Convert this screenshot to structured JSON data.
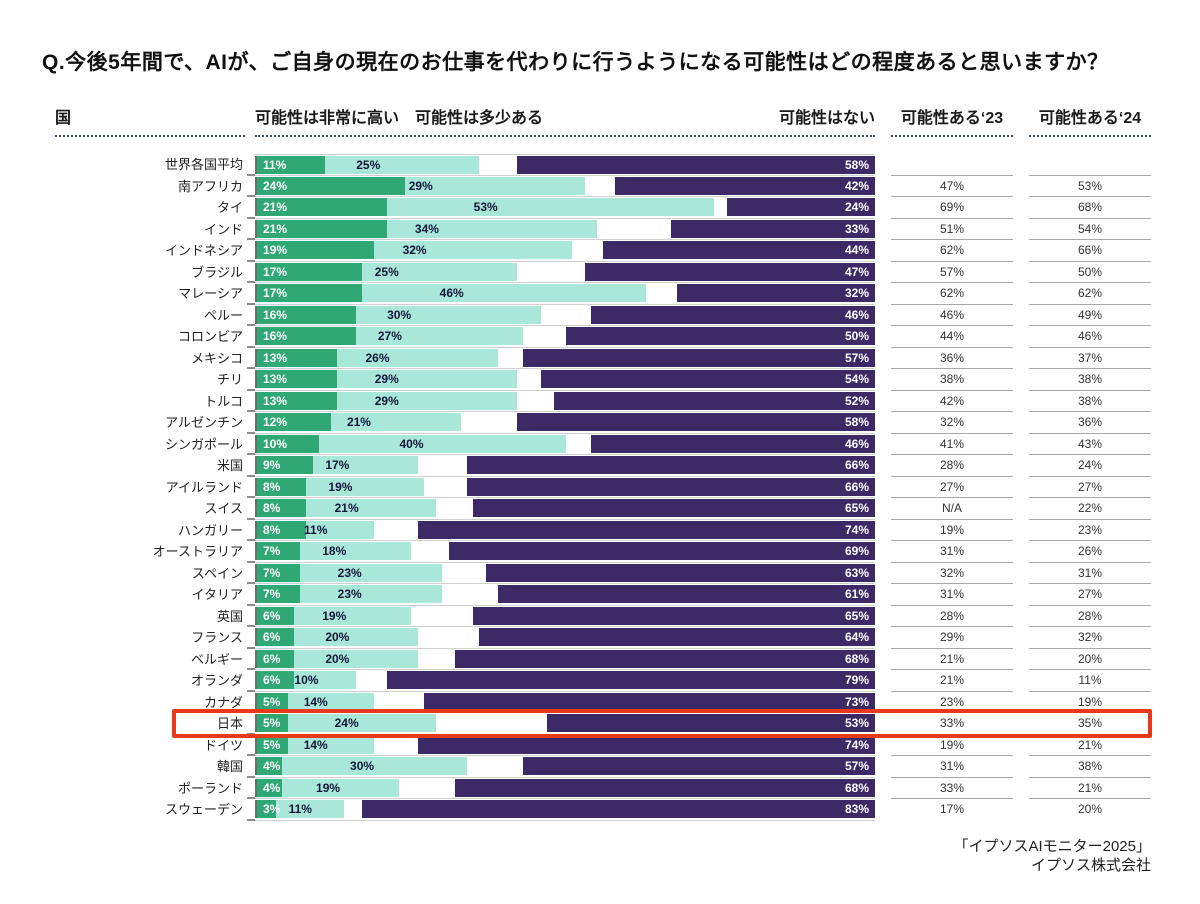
{
  "title": "Q.今後5年間で、AIが、ご自身の現在のお仕事を代わりに行うようになる可能性はどの程度あると思いますか？",
  "header": {
    "country": "国",
    "very_high": "可能性は非常に高い",
    "somewhat": "可能性は多少ある",
    "none": "可能性はない",
    "col23": "可能性ある‘23",
    "col24": "可能性ある‘24"
  },
  "colors": {
    "very_high": "#2FA873",
    "somewhat": "#A9E7D8",
    "none": "#3C2A67",
    "highlight": "#E8391A"
  },
  "footer": {
    "line1": "「イプソスAIモニター2025」",
    "line2": "イプソス株式会社"
  },
  "chart_data": {
    "type": "bar",
    "orientation": "horizontal-stacked",
    "title": "Q.今後5年間で、AIが、ご自身の現在のお仕事を代わりに行うようになる可能性はどの程度あると思いますか？",
    "series_labels": [
      "可能性は非常に高い",
      "可能性は多少ある",
      "可能性はない"
    ],
    "extra_columns": [
      "可能性ある‘23",
      "可能性ある‘24"
    ],
    "xlim": [
      0,
      100
    ],
    "unit": "%",
    "note": "segments are percentages; bars for 可能性はない are right-aligned; remainder is blank",
    "rows": [
      {
        "country": "世界各国平均",
        "very_high": 11,
        "somewhat": 25,
        "none": 58,
        "y23": "",
        "y24": "",
        "highlight": false
      },
      {
        "country": "南アフリカ",
        "very_high": 24,
        "somewhat": 29,
        "none": 42,
        "y23": "47%",
        "y24": "53%",
        "highlight": false
      },
      {
        "country": "タイ",
        "very_high": 21,
        "somewhat": 53,
        "none": 24,
        "y23": "69%",
        "y24": "68%",
        "highlight": false
      },
      {
        "country": "インド",
        "very_high": 21,
        "somewhat": 34,
        "none": 33,
        "y23": "51%",
        "y24": "54%",
        "highlight": false
      },
      {
        "country": "インドネシア",
        "very_high": 19,
        "somewhat": 32,
        "none": 44,
        "y23": "62%",
        "y24": "66%",
        "highlight": false
      },
      {
        "country": "ブラジル",
        "very_high": 17,
        "somewhat": 25,
        "none": 47,
        "y23": "57%",
        "y24": "50%",
        "highlight": false
      },
      {
        "country": "マレーシア",
        "very_high": 17,
        "somewhat": 46,
        "none": 32,
        "y23": "62%",
        "y24": "62%",
        "highlight": false
      },
      {
        "country": "ペルー",
        "very_high": 16,
        "somewhat": 30,
        "none": 46,
        "y23": "46%",
        "y24": "49%",
        "highlight": false
      },
      {
        "country": "コロンビア",
        "very_high": 16,
        "somewhat": 27,
        "none": 50,
        "y23": "44%",
        "y24": "46%",
        "highlight": false
      },
      {
        "country": "メキシコ",
        "very_high": 13,
        "somewhat": 26,
        "none": 57,
        "y23": "36%",
        "y24": "37%",
        "highlight": false
      },
      {
        "country": "チリ",
        "very_high": 13,
        "somewhat": 29,
        "none": 54,
        "y23": "38%",
        "y24": "38%",
        "highlight": false
      },
      {
        "country": "トルコ",
        "very_high": 13,
        "somewhat": 29,
        "none": 52,
        "y23": "42%",
        "y24": "38%",
        "highlight": false
      },
      {
        "country": "アルゼンチン",
        "very_high": 12,
        "somewhat": 21,
        "none": 58,
        "y23": "32%",
        "y24": "36%",
        "highlight": false
      },
      {
        "country": "シンガポール",
        "very_high": 10,
        "somewhat": 40,
        "none": 46,
        "y23": "41%",
        "y24": "43%",
        "highlight": false
      },
      {
        "country": "米国",
        "very_high": 9,
        "somewhat": 17,
        "none": 66,
        "y23": "28%",
        "y24": "24%",
        "highlight": false
      },
      {
        "country": "アイルランド",
        "very_high": 8,
        "somewhat": 19,
        "none": 66,
        "y23": "27%",
        "y24": "27%",
        "highlight": false
      },
      {
        "country": "スイス",
        "very_high": 8,
        "somewhat": 21,
        "none": 65,
        "y23": "N/A",
        "y24": "22%",
        "highlight": false
      },
      {
        "country": "ハンガリー",
        "very_high": 8,
        "somewhat": 11,
        "none": 74,
        "y23": "19%",
        "y24": "23%",
        "highlight": false
      },
      {
        "country": "オーストラリア",
        "very_high": 7,
        "somewhat": 18,
        "none": 69,
        "y23": "31%",
        "y24": "26%",
        "highlight": false
      },
      {
        "country": "スペイン",
        "very_high": 7,
        "somewhat": 23,
        "none": 63,
        "y23": "32%",
        "y24": "31%",
        "highlight": false
      },
      {
        "country": "イタリア",
        "very_high": 7,
        "somewhat": 23,
        "none": 61,
        "y23": "31%",
        "y24": "27%",
        "highlight": false
      },
      {
        "country": "英国",
        "very_high": 6,
        "somewhat": 19,
        "none": 65,
        "y23": "28%",
        "y24": "28%",
        "highlight": false
      },
      {
        "country": "フランス",
        "very_high": 6,
        "somewhat": 20,
        "none": 64,
        "y23": "29%",
        "y24": "32%",
        "highlight": false
      },
      {
        "country": "ベルギー",
        "very_high": 6,
        "somewhat": 20,
        "none": 68,
        "y23": "21%",
        "y24": "20%",
        "highlight": false
      },
      {
        "country": "オランダ",
        "very_high": 6,
        "somewhat": 10,
        "none": 79,
        "y23": "21%",
        "y24": "11%",
        "highlight": false
      },
      {
        "country": "カナダ",
        "very_high": 5,
        "somewhat": 14,
        "none": 73,
        "y23": "23%",
        "y24": "19%",
        "highlight": false
      },
      {
        "country": "日本",
        "very_high": 5,
        "somewhat": 24,
        "none": 53,
        "y23": "33%",
        "y24": "35%",
        "highlight": true
      },
      {
        "country": "ドイツ",
        "very_high": 5,
        "somewhat": 14,
        "none": 74,
        "y23": "19%",
        "y24": "21%",
        "highlight": false
      },
      {
        "country": "韓国",
        "very_high": 4,
        "somewhat": 30,
        "none": 57,
        "y23": "31%",
        "y24": "38%",
        "highlight": false
      },
      {
        "country": "ポーランド",
        "very_high": 4,
        "somewhat": 19,
        "none": 68,
        "y23": "33%",
        "y24": "21%",
        "highlight": false
      },
      {
        "country": "スウェーデン",
        "very_high": 3,
        "somewhat": 11,
        "none": 83,
        "y23": "17%",
        "y24": "20%",
        "highlight": false
      }
    ]
  }
}
